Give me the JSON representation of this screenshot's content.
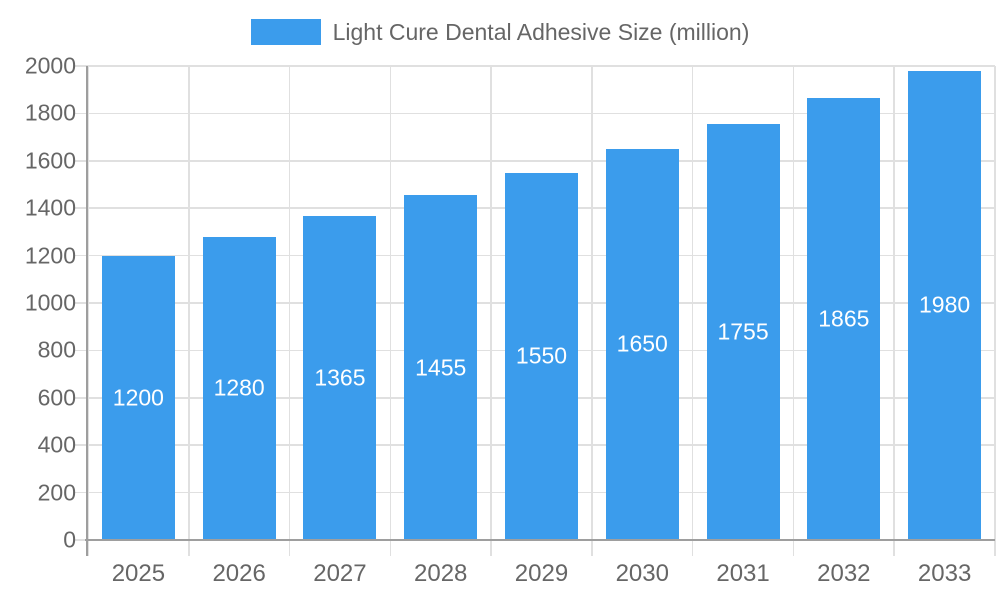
{
  "chart_data": {
    "type": "bar",
    "title": "Light Cure Dental Adhesive Size (million)",
    "legend": {
      "label": "Light Cure Dental Adhesive Size (million)",
      "position": "top"
    },
    "categories": [
      "2025",
      "2026",
      "2027",
      "2028",
      "2029",
      "2030",
      "2031",
      "2032",
      "2033"
    ],
    "series": [
      {
        "name": "Light Cure Dental Adhesive Size (million)",
        "values": [
          1200,
          1280,
          1365,
          1455,
          1550,
          1650,
          1755,
          1865,
          1980
        ]
      }
    ],
    "xlabel": "",
    "ylabel": "",
    "ylim": [
      0,
      2000
    ],
    "yticks": [
      0,
      200,
      400,
      600,
      800,
      1000,
      1200,
      1400,
      1600,
      1800,
      2000
    ],
    "grid": "both",
    "value_labels_shown": true,
    "colors": {
      "bar": "#3B9CEC",
      "value_label": "#FFFFFF",
      "axis_text": "#666666",
      "legend_text": "#666666",
      "grid_line": "#E0E0E0",
      "axis_line": "#9E9E9E",
      "background": "#FFFFFF"
    }
  }
}
